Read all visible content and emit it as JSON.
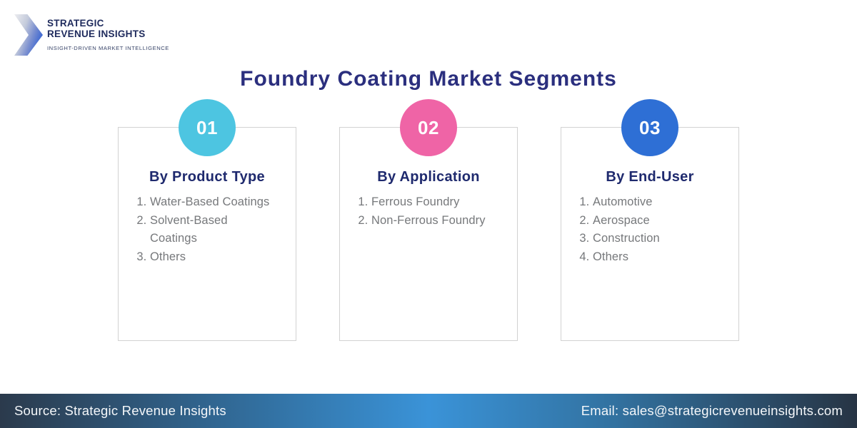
{
  "logo": {
    "name_line1": "STRATEGIC",
    "name_line2": "REVENUE INSIGHTS",
    "tagline": "INSIGHT-DRIVEN MARKET INTELLIGENCE"
  },
  "title": "Foundry Coating Market Segments",
  "cards": [
    {
      "number": "01",
      "circle_color": "#4dc5e1",
      "heading": "By Product Type",
      "items": [
        "Water-Based Coatings",
        "Solvent-Based Coatings",
        "Others"
      ]
    },
    {
      "number": "02",
      "circle_color": "#ef64a6",
      "heading": "By Application",
      "items": [
        "Ferrous Foundry",
        "Non-Ferrous Foundry"
      ]
    },
    {
      "number": "03",
      "circle_color": "#2e6fd5",
      "heading": "By End-User",
      "items": [
        "Automotive",
        "Aerospace",
        "Construction",
        "Others"
      ]
    }
  ],
  "footer": {
    "source": "Source: Strategic Revenue Insights",
    "email": "Email: sales@strategicrevenueinsights.com"
  },
  "colors": {
    "title_text": "#2b2f7e",
    "heading_text": "#1f2a6e",
    "list_text": "#76787b",
    "card_border": "#d2d2d2",
    "logo_text": "#1e2a5c",
    "circle_1": "#4dc5e1",
    "circle_2": "#ef64a6",
    "circle_3": "#2e6fd5",
    "footer_gradient_left": "#2b3a4c",
    "footer_gradient_mid": "#3a93d8",
    "footer_gradient_right": "#273444"
  }
}
